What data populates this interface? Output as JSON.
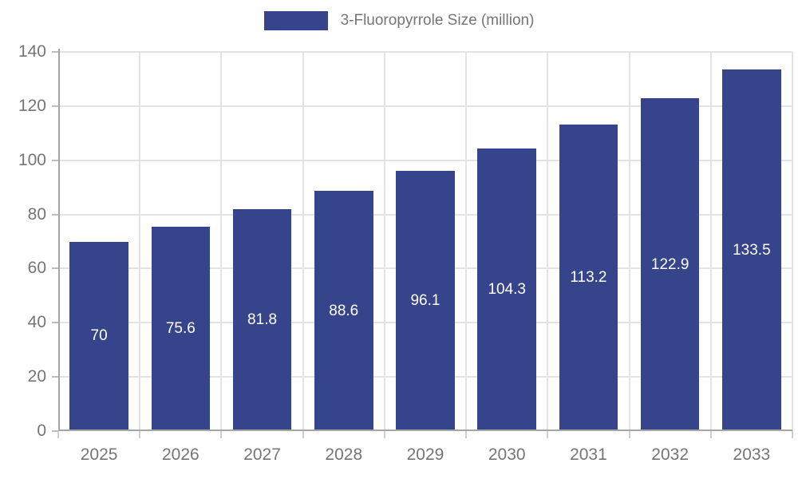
{
  "chart_data": {
    "type": "bar",
    "legend": "3-Fluoropyrrole Size (million)",
    "categories": [
      "2025",
      "2026",
      "2027",
      "2028",
      "2029",
      "2030",
      "2031",
      "2032",
      "2033"
    ],
    "values": [
      70,
      75.6,
      81.8,
      88.6,
      96.1,
      104.3,
      113.2,
      122.9,
      133.5
    ],
    "value_labels": [
      "70",
      "75.6",
      "81.8",
      "88.6",
      "96.1",
      "104.3",
      "113.2",
      "122.9",
      "133.5"
    ],
    "ylim": [
      0,
      140
    ],
    "yticks": [
      0,
      20,
      40,
      60,
      80,
      100,
      120,
      140
    ],
    "grid": true,
    "legend_position": "top-center",
    "colors": {
      "bar": "#36458B",
      "value_label_text": "#ffffff",
      "axis_text": "#757575",
      "gridline": "#e3e3e3",
      "axis_line": "#a6a6a6",
      "background": "#ffffff"
    }
  }
}
